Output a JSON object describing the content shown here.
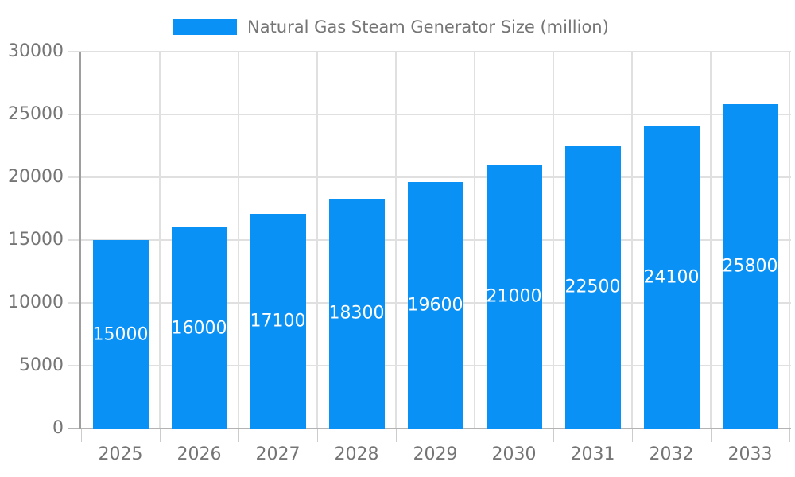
{
  "chart_data": {
    "type": "bar",
    "title": "Natural Gas Steam Generator Size (million)",
    "categories": [
      "2025",
      "2026",
      "2027",
      "2028",
      "2029",
      "2030",
      "2031",
      "2032",
      "2033"
    ],
    "values": [
      15000,
      16000,
      17100,
      18300,
      19600,
      21000,
      22500,
      24100,
      25800
    ],
    "value_labels": [
      "15000",
      "16000",
      "17100",
      "18300",
      "19600",
      "21000",
      "22500",
      "24100",
      "25800"
    ],
    "xlabel": "",
    "ylabel": "",
    "ylim": [
      0,
      30000
    ],
    "yticks": [
      0,
      5000,
      10000,
      15000,
      20000,
      25000,
      30000
    ],
    "ytick_labels": [
      "0",
      "5000",
      "10000",
      "15000",
      "20000",
      "25000",
      "30000"
    ],
    "grid": "on",
    "legend_position": "top",
    "colors": {
      "bar": "#0991f5",
      "bar_value_label": "#ffffff",
      "axis_text": "#757575",
      "gridline": "#e0e0e0",
      "y_axis_line": "#9e9e9e",
      "x_axis_line": "#b3b3b3",
      "background": "#ffffff"
    }
  }
}
